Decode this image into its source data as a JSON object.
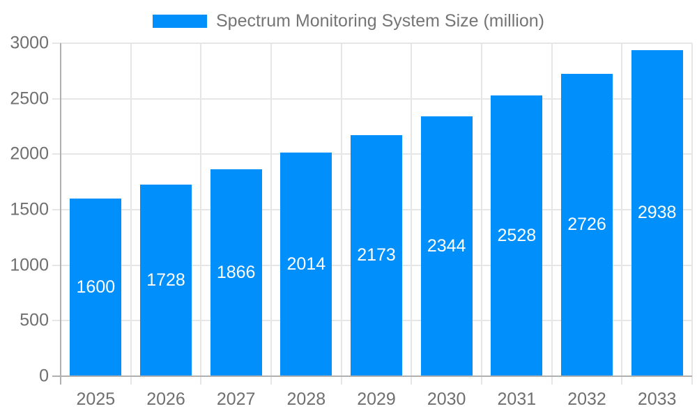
{
  "chart_data": {
    "type": "bar",
    "title": "Spectrum Monitoring System Size (million)",
    "legend_position": "top",
    "categories": [
      "2025",
      "2026",
      "2027",
      "2028",
      "2029",
      "2030",
      "2031",
      "2032",
      "2033"
    ],
    "values": [
      1600,
      1728,
      1866,
      2014,
      2173,
      2344,
      2528,
      2726,
      2938
    ],
    "series": [
      {
        "name": "Spectrum Monitoring System Size (million)",
        "values": [
          1600,
          1728,
          1866,
          2014,
          2173,
          2344,
          2528,
          2726,
          2938
        ]
      }
    ],
    "xlabel": "",
    "ylabel": "",
    "ylim": [
      0,
      3000
    ],
    "yticks": [
      0,
      500,
      1000,
      1500,
      2000,
      2500,
      3000
    ],
    "grid": true,
    "bar_label_placement": "inside-center",
    "colors": {
      "bar": "#008FFB",
      "bar_label": "#ffffff",
      "grid": "#e6e6e6",
      "axis": "#b0b0b0",
      "axis_text": "#6f6f6f",
      "legend_text": "#757575"
    }
  }
}
